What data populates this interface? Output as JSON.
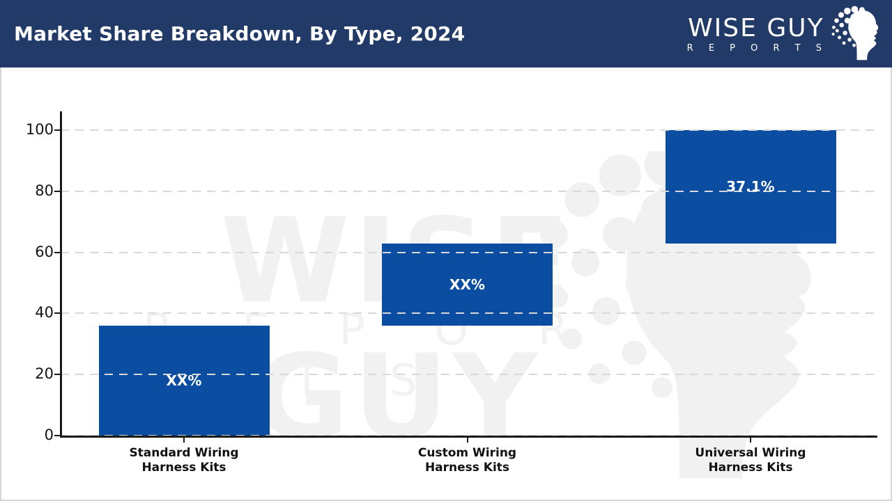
{
  "header": {
    "title": "Market Share Breakdown, By Type, 2024",
    "logo": {
      "name": "WISE GUY",
      "tagline": "R E P O R T S"
    }
  },
  "watermark": {
    "line1": "WISE GUY",
    "line2": "R E P O R T S"
  },
  "colors": {
    "header_bg": "#213a68",
    "bar": "#0b4da1",
    "grid": "#d8d8d8",
    "axis": "#1a1a1a",
    "watermark": "#f1f1f1"
  },
  "chart_data": {
    "type": "bar",
    "subtype": "waterfall",
    "title": "Market Share Breakdown, By Type, 2024",
    "categories": [
      "Standard Wiring Harness Kits",
      "Custom Wiring Harness Kits",
      "Universal Wiring Harness Kits"
    ],
    "category_label_lines": [
      [
        "Standard Wiring",
        "Harness Kits"
      ],
      [
        "Custom Wiring",
        "Harness Kits"
      ],
      [
        "Universal Wiring",
        "Harness Kits"
      ]
    ],
    "segments": [
      {
        "category": "Standard Wiring Harness Kits",
        "start": 0,
        "end": 35.9,
        "label": "XX%"
      },
      {
        "category": "Custom Wiring Harness Kits",
        "start": 35.9,
        "end": 62.9,
        "label": "XX%"
      },
      {
        "category": "Universal Wiring Harness Kits",
        "start": 62.9,
        "end": 100,
        "label": "37.1%"
      }
    ],
    "yticks": [
      0,
      20,
      40,
      60,
      80,
      100
    ],
    "ylim": [
      0,
      106
    ],
    "xlabel": "",
    "ylabel": "",
    "grid": "horizontal-dashed",
    "legend": "none",
    "bar_color": "#0b4da1"
  }
}
